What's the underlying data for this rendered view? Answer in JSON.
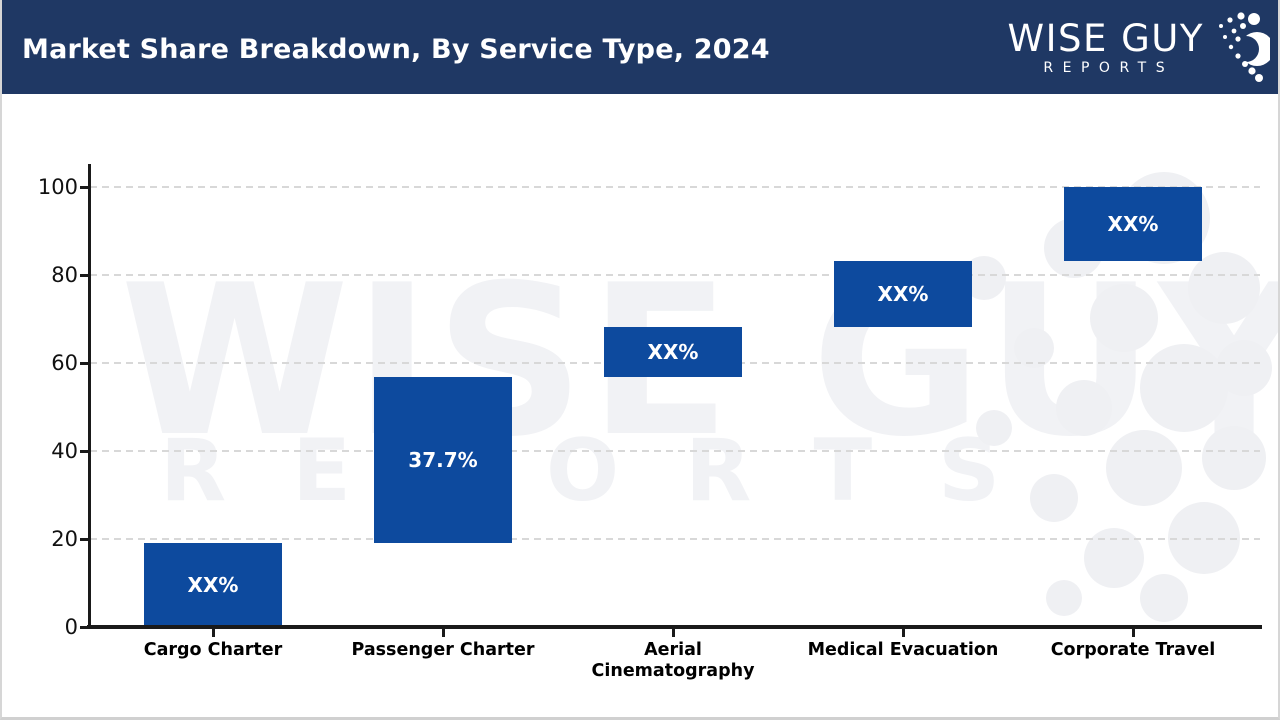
{
  "header": {
    "title": "Market Share Breakdown, By Service Type, 2024",
    "logo_line1": "WISE GUY",
    "logo_line2": "REPORTS"
  },
  "watermark": {
    "line1": "WISE GUY",
    "line2": "REPORTS"
  },
  "colors": {
    "header_bg": "#1f3864",
    "bar": "#0d4a9e",
    "bar_label": "#ffffff",
    "axis": "#1a1a1a",
    "gridline": "#d8d8d8",
    "watermark": "#f1f2f5"
  },
  "chart_data": {
    "type": "bar",
    "subtype": "waterfall",
    "title": "Market Share Breakdown, By Service Type, 2024",
    "categories": [
      "Cargo Charter",
      "Passenger Charter",
      "Aerial\nCinematography",
      "Medical Evacuation",
      "Corporate Travel"
    ],
    "bars": [
      {
        "category": "Cargo Charter",
        "start": 0,
        "end": 19.1,
        "label": "XX%"
      },
      {
        "category": "Passenger Charter",
        "start": 19.1,
        "end": 56.8,
        "label": "37.7%"
      },
      {
        "category": "Aerial\nCinematography",
        "start": 56.8,
        "end": 68.1,
        "label": "XX%"
      },
      {
        "category": "Medical Evacuation",
        "start": 68.1,
        "end": 83.2,
        "label": "XX%"
      },
      {
        "category": "Corporate Travel",
        "start": 83.2,
        "end": 100,
        "label": "XX%"
      }
    ],
    "yticks": [
      0,
      20,
      40,
      60,
      80,
      100
    ],
    "ylim": [
      0,
      100
    ],
    "xlabel": "",
    "ylabel": "",
    "grid": "horizontal-dashed",
    "legend": "none"
  }
}
